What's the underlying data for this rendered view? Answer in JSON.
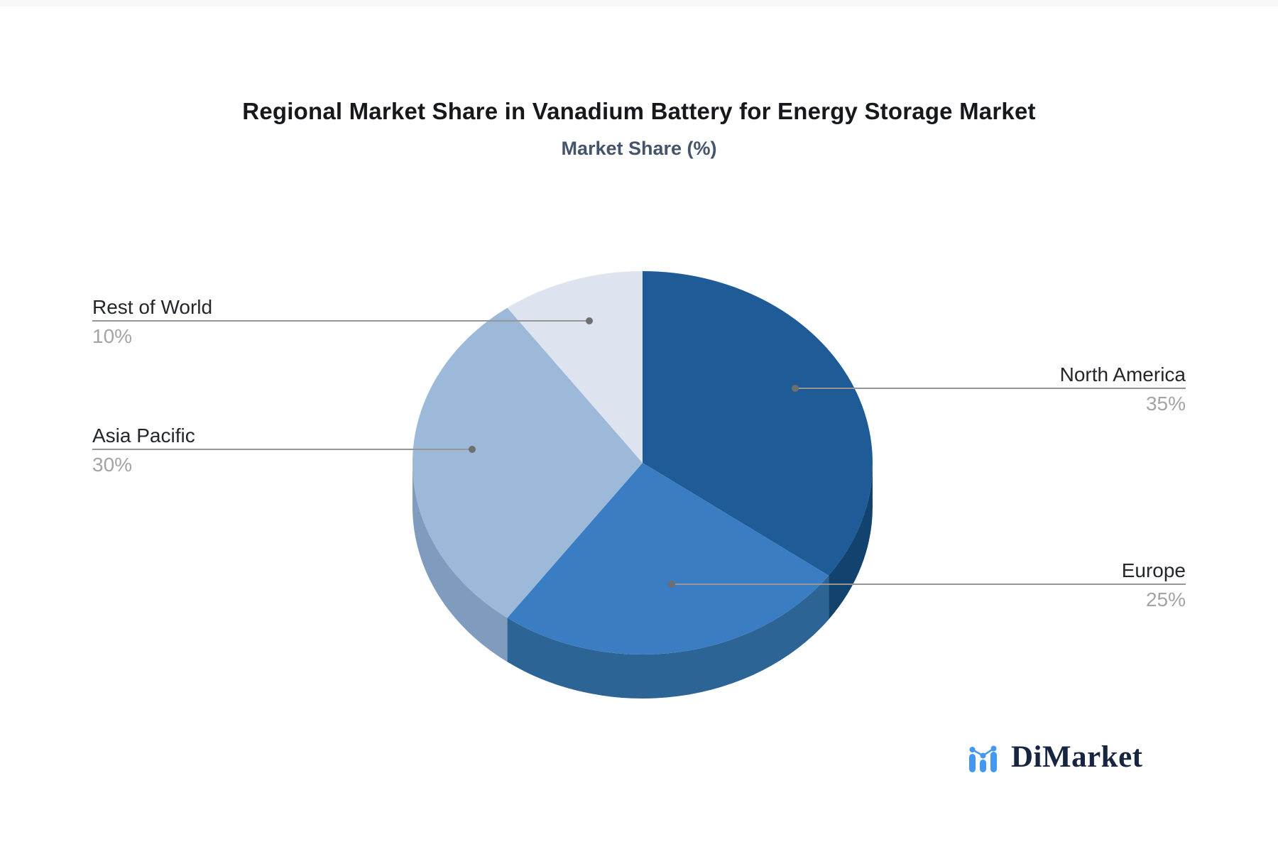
{
  "page": {
    "background_color": "#ffffff",
    "top_strip_color": "#f7f8f9"
  },
  "header": {
    "title": "Regional Market Share in Vanadium Battery for Energy Storage Market",
    "subtitle": "Market Share (%)"
  },
  "chart_data": {
    "type": "pie",
    "style": "3d",
    "title": "Regional Market Share in Vanadium Battery for Energy Storage Market",
    "subtitle": "Market Share (%)",
    "unit": "%",
    "direction": "clockwise",
    "start_angle_deg": 0,
    "legend_position": "callout-labels",
    "labels": [
      "North America",
      "Europe",
      "Asia Pacific",
      "Rest of World"
    ],
    "values": [
      35,
      25,
      30,
      10
    ],
    "value_labels": [
      "35%",
      "25%",
      "30%",
      "10%"
    ],
    "colors": [
      "#1e5b97",
      "#3a7dc3",
      "#9cb9da",
      "#dee4ef"
    ],
    "side_colors": [
      "#12436f",
      "#2d6496",
      "#7f9cbe",
      "#c6d1e2"
    ],
    "callout_line_color": "#969696",
    "callout_dot_color": "#6f6f6f",
    "label_text_color": "#23262b",
    "value_text_color": "#a4a4a4"
  },
  "logo": {
    "text": "DiMarket",
    "icon": "bar-chart-logo-icon",
    "icon_color": "#4498f2",
    "text_color": "#172540"
  }
}
